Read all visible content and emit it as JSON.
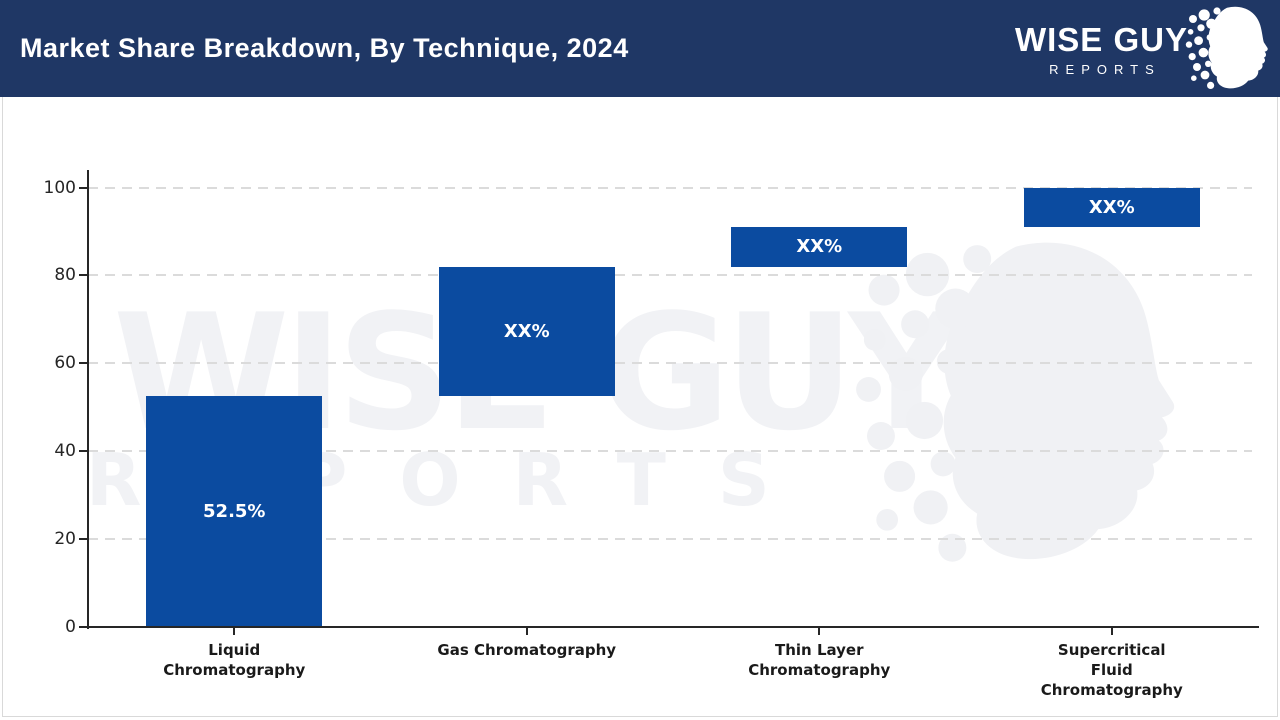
{
  "header": {
    "title": "Market Share Breakdown, By Technique, 2024",
    "logo": {
      "brand": "WISE GUY",
      "sub": "REPORTS"
    }
  },
  "watermark": {
    "brand": "WISE GUY",
    "sub": "REPORTS"
  },
  "colors": {
    "header_bg": "#1F3765",
    "bar": "#0B4BA0",
    "bar_label": "#FFFFFF",
    "grid": "#DBDBDB",
    "axis": "#262626",
    "watermark": "#F1F2F5",
    "border": "#D9D9D9"
  },
  "chart_data": {
    "type": "bar",
    "subtype": "waterfall",
    "title": "Market Share Breakdown, By Technique, 2024",
    "categories": [
      "Liquid\nChromatography",
      "Gas Chromatography",
      "Thin Layer\nChromatography",
      "Supercritical\nFluid\nChromatography"
    ],
    "segments": [
      {
        "category": "Liquid Chromatography",
        "start": 0,
        "end": 52.5,
        "label": "52.5%"
      },
      {
        "category": "Gas Chromatography",
        "start": 52.5,
        "end": 82.0,
        "label": "XX%"
      },
      {
        "category": "Thin Layer Chromatography",
        "start": 82.0,
        "end": 91.1,
        "label": "XX%"
      },
      {
        "category": "Supercritical Fluid Chromatography",
        "start": 91.1,
        "end": 99.9,
        "label": "XX%"
      }
    ],
    "xlabel": "",
    "ylabel": "",
    "yticks": [
      0,
      20,
      40,
      60,
      80,
      100
    ],
    "ylim": [
      0,
      104
    ],
    "grid": "horizontal-dashed",
    "legend": "none"
  }
}
